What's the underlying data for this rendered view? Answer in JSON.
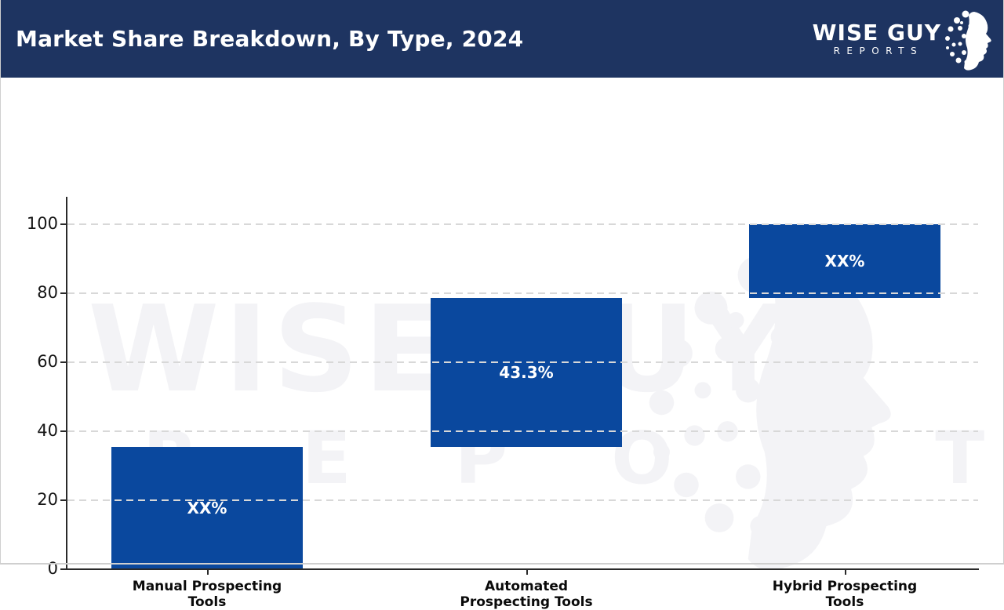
{
  "header": {
    "title": "Market Share Breakdown, By Type, 2024",
    "logo": {
      "line1": "WISE GUY",
      "line2": "REPORTS"
    }
  },
  "watermark": {
    "line1": "WISE GUY",
    "line2": "R E P O R T S"
  },
  "colors": {
    "header_bg": "#1E3461",
    "bar": "#0A489E",
    "grid": "#D8D8D8",
    "axis": "#2A2A2A",
    "bar_label": "#FFFFFF",
    "watermark": "#F3F3F6"
  },
  "chart_data": {
    "type": "bar",
    "subtype": "waterfall",
    "title": "Market Share Breakdown, By Type, 2024",
    "categories": [
      "Manual Prospecting\nTools",
      "Automated\nProspecting Tools",
      "Hybrid Prospecting\nTools"
    ],
    "segments": [
      {
        "category": "Manual Prospecting Tools",
        "start": 0,
        "end": 35.2,
        "label": "XX%"
      },
      {
        "category": "Automated Prospecting Tools",
        "start": 35.2,
        "end": 78.5,
        "label": "43.3%"
      },
      {
        "category": "Hybrid Prospecting Tools",
        "start": 78.5,
        "end": 99.8,
        "label": "XX%"
      }
    ],
    "ylim": [
      0,
      100
    ],
    "yticks": [
      0,
      20,
      40,
      60,
      80,
      100
    ],
    "grid": "dashed-horizontal",
    "legend": "none",
    "xlabel": "",
    "ylabel": ""
  }
}
